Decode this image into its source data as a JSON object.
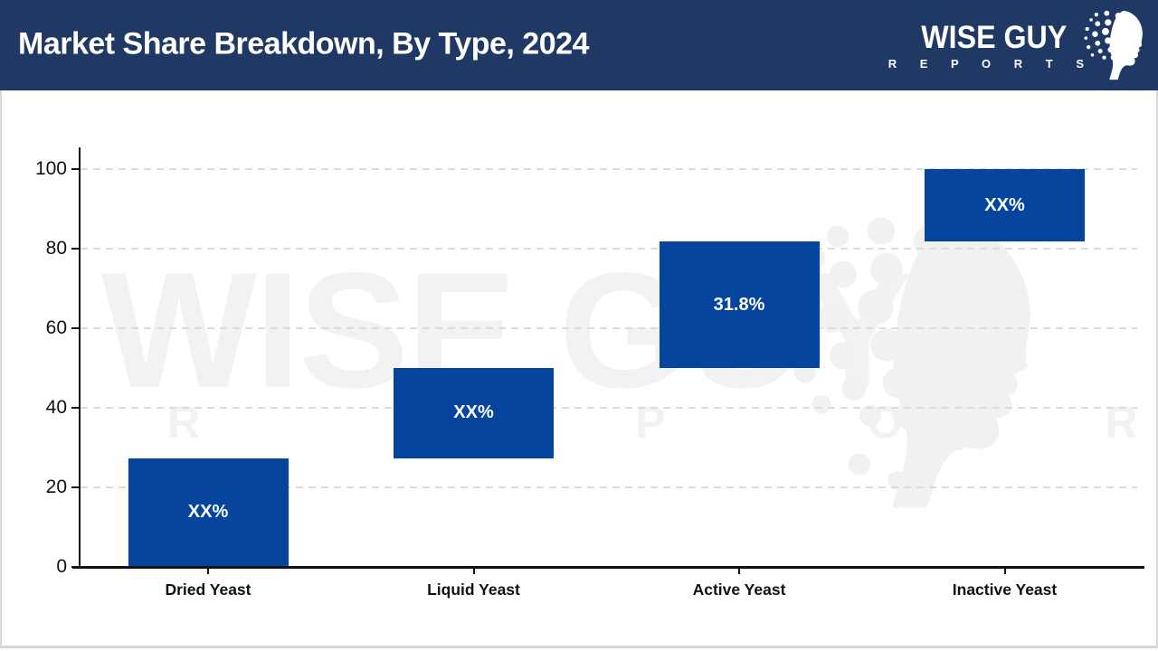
{
  "header": {
    "title": "Market Share Breakdown, By Type, 2024",
    "logo_line1": "WISE GUY",
    "logo_line2": "R E P O R T S",
    "background": "#1f3864"
  },
  "watermark": {
    "line1": "WISE GUY",
    "line2": "R E P O R T S",
    "color": "#f2f2f2"
  },
  "chart_data": {
    "type": "bar",
    "subtype": "floating-waterfall",
    "title": "Market Share Breakdown, By Type, 2024",
    "categories": [
      "Dried Yeast",
      "Liquid Yeast",
      "Active Yeast",
      "Inactive Yeast"
    ],
    "series": [
      {
        "name": "Market share (%)",
        "base": [
          0,
          27.3,
          50,
          81.8
        ],
        "top": [
          27.3,
          50,
          81.8,
          100
        ],
        "labels": [
          "XX%",
          "XX%",
          "31.8%",
          "XX%"
        ]
      }
    ],
    "xlabel": "",
    "ylabel": "",
    "ylim": [
      0,
      100
    ],
    "yticks": [
      0,
      20,
      40,
      60,
      80,
      100
    ],
    "grid": "horizontal-dashed",
    "legend": "none",
    "bar_color": "#05459d",
    "bar_label_color": "#ffffff",
    "gridline_color": "#dcdcdc",
    "axis_color": "#111111"
  }
}
